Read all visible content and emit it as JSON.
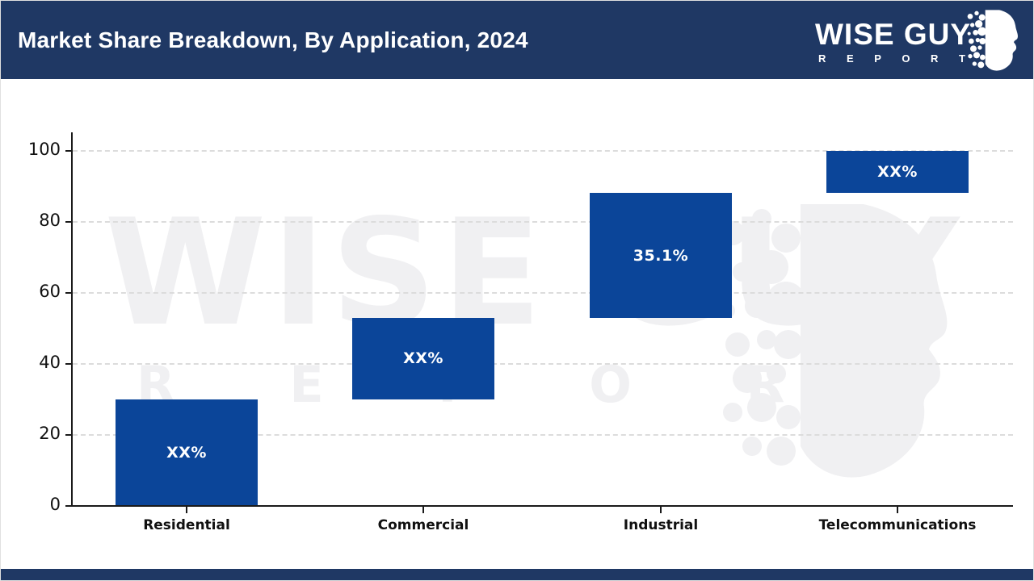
{
  "header": {
    "title": "Market Share Breakdown, By Application, 2024",
    "background_color": "#1f3864",
    "logo": {
      "line1": "WISE GUY",
      "line2": "R E P O R T S"
    }
  },
  "watermark": {
    "line1": "WISE GUY",
    "line2": "R E P O R T S"
  },
  "chart_data": {
    "type": "bar",
    "subtype": "floating-waterfall",
    "title": "Market Share Breakdown, By Application, 2024",
    "categories": [
      "Residential",
      "Commercial",
      "Industrial",
      "Telecommunications"
    ],
    "segments": [
      {
        "category": "Residential",
        "from": 0,
        "to": 30,
        "label": "XX%"
      },
      {
        "category": "Commercial",
        "from": 30,
        "to": 53,
        "label": "XX%"
      },
      {
        "category": "Industrial",
        "from": 53,
        "to": 88.1,
        "label": "35.1%"
      },
      {
        "category": "Telecommunications",
        "from": 88.1,
        "to": 100,
        "label": "XX%"
      }
    ],
    "yticks": [
      0,
      20,
      40,
      60,
      80,
      100
    ],
    "ylim": [
      0,
      105
    ],
    "xlabel": "",
    "ylabel": "",
    "grid": "horizontal-dashed",
    "legend": "none",
    "bar_color": "#0B4599",
    "bar_label_color": "#ffffff",
    "grid_color": "#dcdcdc",
    "axis_color": "#1a1a1a"
  },
  "footer": {
    "background_color": "#1f3864"
  }
}
